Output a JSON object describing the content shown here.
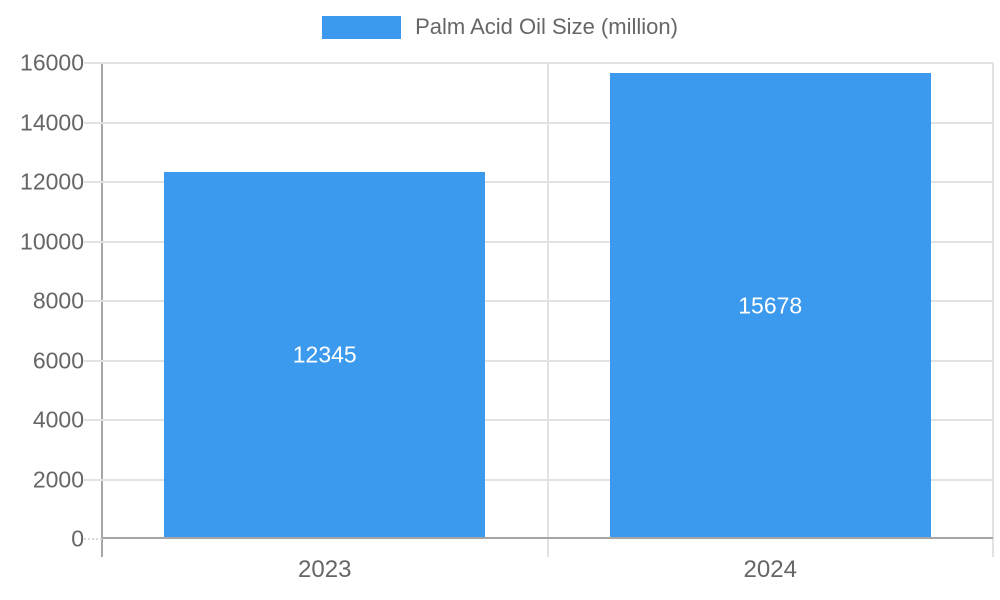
{
  "legend": {
    "items": [
      {
        "label": "Palm Acid Oil Size (million)",
        "color": "#3B9AED"
      }
    ]
  },
  "chart_data": {
    "type": "bar",
    "title": "",
    "xlabel": "",
    "ylabel": "",
    "categories": [
      "2023",
      "2024"
    ],
    "series": [
      {
        "name": "Palm Acid Oil Size (million)",
        "color": "#3B9AED",
        "values": [
          12345,
          15678
        ]
      }
    ],
    "value_labels": [
      "12345",
      "15678"
    ],
    "ylim": [
      0,
      16000
    ],
    "ytick_step": 2000,
    "ytick_labels": [
      "0",
      "2000",
      "4000",
      "6000",
      "8000",
      "10000",
      "12000",
      "14000",
      "16000"
    ],
    "grid": true,
    "legend_position": "top-center",
    "colors": {
      "bar": "#3B9AED",
      "grid": "#E2E2E2",
      "axis": "#A6A6A6",
      "label_text": "#666666",
      "value_label_text": "#FFFFFF",
      "background": "#FFFFFF"
    }
  }
}
